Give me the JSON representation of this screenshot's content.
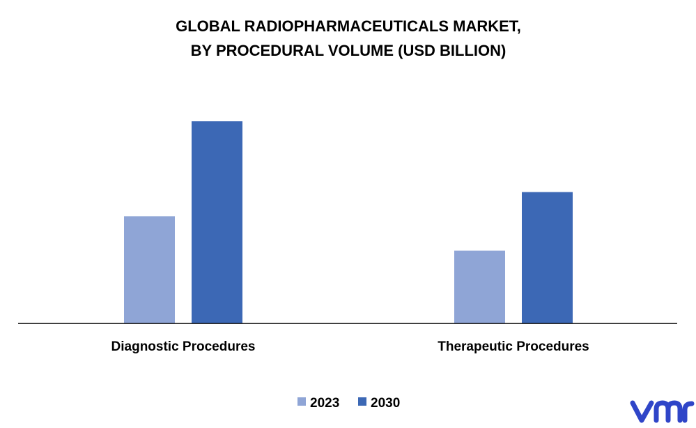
{
  "title_lines": [
    "GLOBAL RADIOPHARMACEUTICALS MARKET,",
    "BY PROCEDURAL VOLUME (USD BILLION)"
  ],
  "logo_text": "vmr",
  "colors": {
    "series_2023": "#8fa5d6",
    "series_2030": "#3c68b5",
    "axis": "#000000",
    "logo": "#2f45c8"
  },
  "chart_data": {
    "type": "bar",
    "title": "GLOBAL RADIOPHARMACEUTICALS MARKET, BY PROCEDURAL VOLUME (USD BILLION)",
    "categories": [
      "Diagnostic Procedures",
      "Therapeutic Procedures"
    ],
    "series": [
      {
        "name": "2023",
        "values": [
          5.3,
          3.6
        ]
      },
      {
        "name": "2030",
        "values": [
          10.0,
          6.5
        ]
      }
    ],
    "ylim": [
      0,
      11
    ],
    "xlabel": "",
    "ylabel": "",
    "legend": "bottom-center",
    "grid": false
  }
}
